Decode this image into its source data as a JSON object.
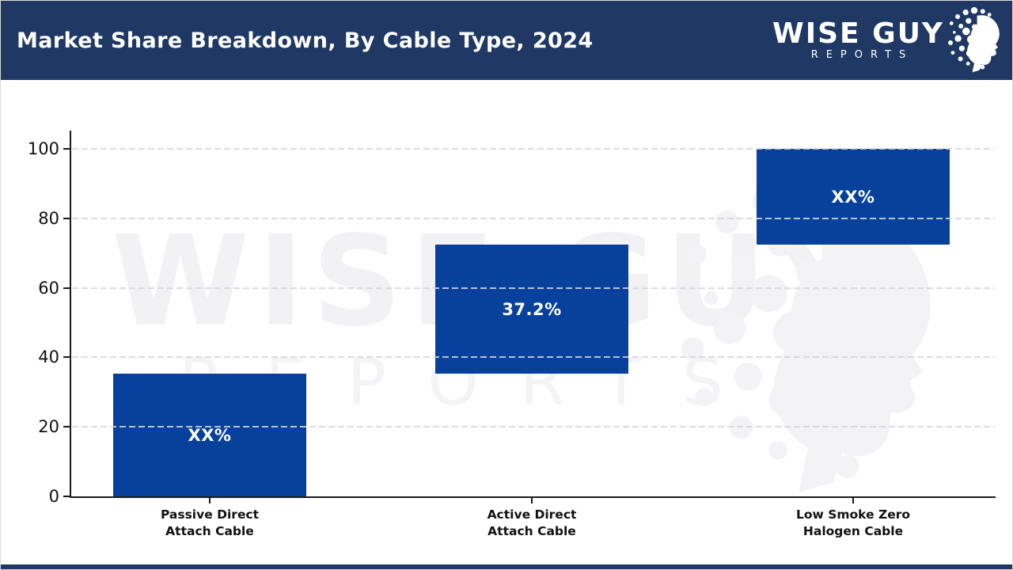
{
  "header": {
    "title": "Market Share Breakdown, By Cable Type, 2024",
    "brand_line1": "WISE GUY",
    "brand_line2": "REPORTS"
  },
  "watermark": {
    "line1": "WISE GUY",
    "line2": "REPORTS"
  },
  "chart_data": {
    "type": "bar",
    "variant": "waterfall",
    "title": "Market Share Breakdown, By Cable Type, 2024",
    "categories": [
      {
        "line1": "Passive Direct",
        "line2": "Attach Cable"
      },
      {
        "line1": "Active Direct",
        "line2": "Attach Cable"
      },
      {
        "line1": "Low Smoke Zero",
        "line2": "Halogen Cable"
      }
    ],
    "segments": [
      {
        "start": 0,
        "end": 35.2,
        "label": "XX%"
      },
      {
        "start": 35.2,
        "end": 72.4,
        "label": "37.2%"
      },
      {
        "start": 72.4,
        "end": 100,
        "label": "XX%"
      }
    ],
    "yticks": [
      0,
      20,
      40,
      60,
      80,
      100
    ],
    "ylim": [
      0,
      100
    ],
    "grid": {
      "axis": "y",
      "style": "dashed",
      "color": "#d6d6d6"
    },
    "legend": "none",
    "colors": {
      "bar": "#08419c",
      "header_bg": "#1f3864",
      "value_label": "#ffffff"
    }
  }
}
